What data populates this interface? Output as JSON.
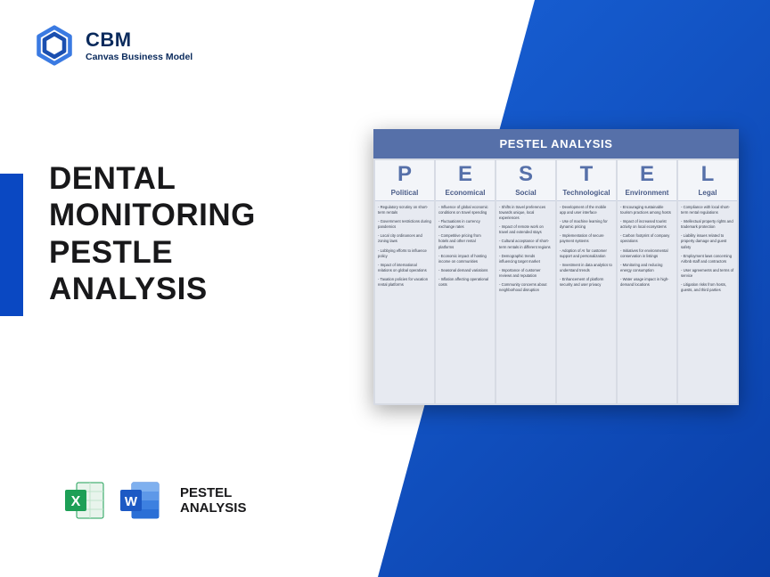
{
  "colors": {
    "bg_gradient_from": "#1861d6",
    "bg_gradient_to": "#0a3fa8",
    "accent_bar": "#0a48c2",
    "brand_text": "#0a2a5c",
    "title_text": "#18181a",
    "pestel_header_bg": "#5670a9",
    "pestel_header_text": "#ffffff",
    "pestel_col_bg": "#e7eaf1",
    "pestel_grid_gap": "#d7dbe4",
    "pestel_letter_color": "#5670a9",
    "pestel_cat_color": "#4a5c88",
    "excel_green": "#1d9f56",
    "word_blue": "#2a6fd6"
  },
  "logo": {
    "brand": "CBM",
    "sub": "Canvas Business Model"
  },
  "title": {
    "line1": "DENTAL",
    "line2": "MONITORING",
    "line3": "PESTLE",
    "line4": "ANALYSIS"
  },
  "file_label": {
    "line1": "PESTEL",
    "line2": "ANALYSIS"
  },
  "pestel": {
    "header": "PESTEL ANALYSIS",
    "columns": [
      {
        "letter": "P",
        "category": "Political",
        "items": [
          "Regulatory scrutiny on short-term rentals",
          "Government restrictions during pandemics",
          "Local city ordinances and zoning laws",
          "Lobbying efforts to influence policy",
          "Impact of international relations on global operations",
          "Taxation policies for vacation rental platforms"
        ]
      },
      {
        "letter": "E",
        "category": "Economical",
        "items": [
          "Influence of global economic conditions on travel spending",
          "Fluctuations in currency exchange rates",
          "Competitive pricing from hotels and other rental platforms",
          "Economic impact of hosting income on communities",
          "Seasonal demand variations",
          "Inflation affecting operational costs"
        ]
      },
      {
        "letter": "S",
        "category": "Social",
        "items": [
          "Shifts in travel preferences towards unique, local experiences",
          "Impact of remote work on travel and extended stays",
          "Cultural acceptance of short-term rentals in different regions",
          "Demographic trends influencing target market",
          "Importance of customer reviews and reputation",
          "Community concerns about neighborhood disruption"
        ]
      },
      {
        "letter": "T",
        "category": "Technological",
        "items": [
          "Development of the mobile app and user interface",
          "Use of machine learning for dynamic pricing",
          "Implementation of secure payment systems",
          "Adoption of AI for customer support and personalization",
          "Investment in data analytics to understand trends",
          "Enhancement of platform security and user privacy"
        ]
      },
      {
        "letter": "E",
        "category": "Environment",
        "items": [
          "Encouraging sustainable tourism practices among hosts",
          "Impact of increased tourist activity on local ecosystems",
          "Carbon footprint of company operations",
          "Initiatives for environmental conservation in listings",
          "Monitoring and reducing energy consumption",
          "Water usage impact in high-demand locations"
        ]
      },
      {
        "letter": "L",
        "category": "Legal",
        "items": [
          "Compliance with local short-term rental regulations",
          "Intellectual property rights and trademark protection",
          "Liability issues related to property damage and guest safety",
          "Employment laws concerning Airbnb staff and contractors",
          "User agreements and terms of service",
          "Litigation risks from hosts, guests, and third parties"
        ]
      }
    ]
  }
}
